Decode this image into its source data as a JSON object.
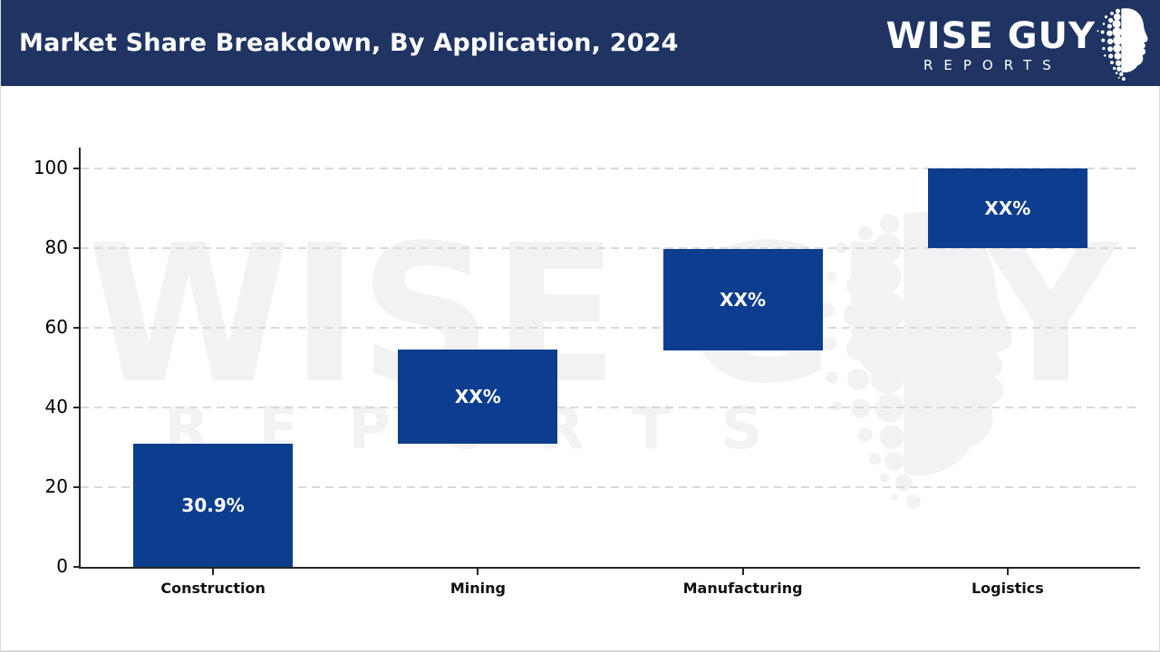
{
  "header": {
    "title": "Market Share Breakdown, By Application, 2024",
    "bg_color": "#1f3462",
    "logo": {
      "line1": "WISE GUY",
      "line2": "REPORTS",
      "face_icon": "dotted-face-profile"
    }
  },
  "watermark": {
    "line1": "WISE GUY",
    "line2": "REPORTS",
    "color": "#f2f2f4"
  },
  "chart_data": {
    "type": "bar",
    "subtype": "floating-waterfall",
    "title": "Market Share Breakdown, By Application, 2024",
    "categories": [
      "Construction",
      "Mining",
      "Manufacturing",
      "Logistics"
    ],
    "segments": [
      {
        "category": "Construction",
        "start": 0,
        "end": 30.9,
        "label": "30.9%"
      },
      {
        "category": "Mining",
        "start": 30.9,
        "end": 54.4,
        "label": "XX%"
      },
      {
        "category": "Manufacturing",
        "start": 54.3,
        "end": 79.6,
        "label": "XX%"
      },
      {
        "category": "Logistics",
        "start": 79.8,
        "end": 100,
        "label": "XX%"
      }
    ],
    "xlabel": "",
    "ylabel": "",
    "ylim": [
      0,
      100
    ],
    "y_ticks": [
      0,
      20,
      40,
      60,
      80,
      100
    ],
    "grid": "horizontal-dashed",
    "legend": "none",
    "bar_color": "#0c3d8e",
    "bar_label_color": "#ffffff",
    "axis_color": "#262626",
    "grid_color": "#d9d9d9"
  }
}
